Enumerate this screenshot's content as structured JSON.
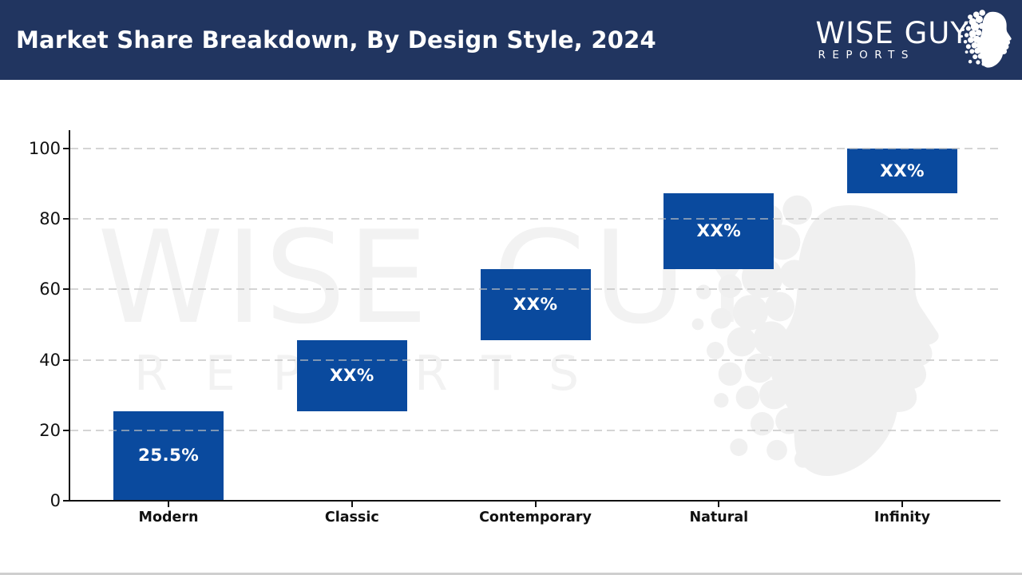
{
  "header": {
    "title": "Market Share Breakdown, By Design Style, 2024",
    "background_color": "#213560",
    "logo": {
      "line1": "WISE GUY",
      "line2": "REPORTS"
    }
  },
  "watermark": {
    "line1": "WISE GUY",
    "line2": "REPORTS"
  },
  "chart_data": {
    "type": "bar",
    "subtype": "waterfall",
    "title": "Market Share Breakdown, By Design Style, 2024",
    "categories": [
      "Modern",
      "Classic",
      "Contemporary",
      "Natural",
      "Infinity"
    ],
    "segments": [
      {
        "category": "Modern",
        "start": 0,
        "end": 25.5,
        "label": "25.5%"
      },
      {
        "category": "Classic",
        "start": 25.5,
        "end": 45.6,
        "label": "XX%"
      },
      {
        "category": "Contemporary",
        "start": 45.6,
        "end": 65.7,
        "label": "XX%"
      },
      {
        "category": "Natural",
        "start": 65.7,
        "end": 87.3,
        "label": "XX%"
      },
      {
        "category": "Infinity",
        "start": 87.3,
        "end": 100,
        "label": "XX%"
      }
    ],
    "value_labels_note": "all labels except the first are shown redacted as XX% in the image",
    "xlabel": "",
    "ylabel": "",
    "ylim": [
      0,
      105
    ],
    "yticks": [
      0,
      20,
      40,
      60,
      80,
      100
    ],
    "grid": "horizontal-dashed",
    "legend": "none",
    "bar_color": "#0a4a9e",
    "bar_label_color": "#ffffff",
    "axis_color": "#111111",
    "grid_color": "#c9c9c9"
  }
}
